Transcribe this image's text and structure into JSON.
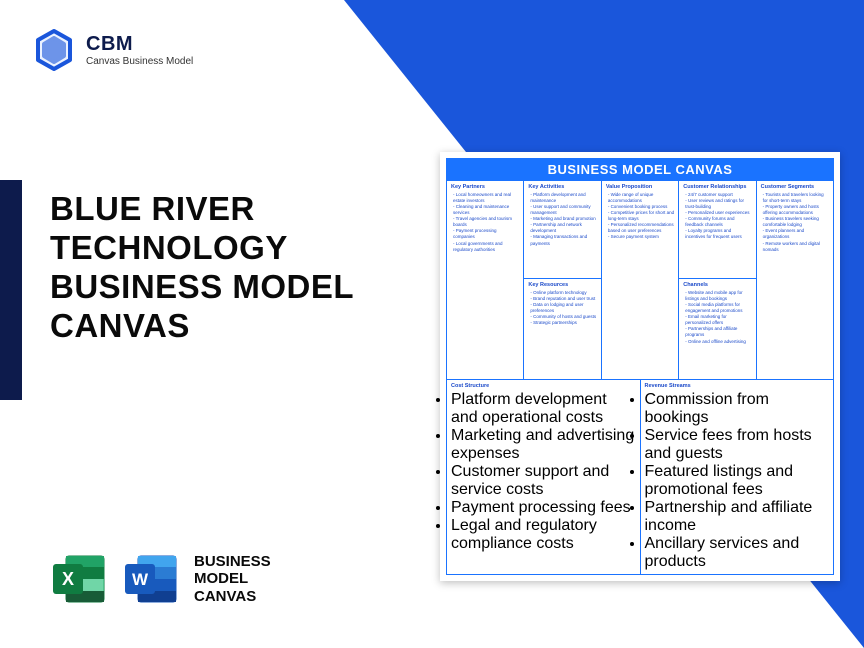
{
  "colors": {
    "primary_blue": "#1a56db",
    "dark_navy": "#0d1b4c",
    "canvas_blue": "#1a73ff",
    "text_blue": "#1a49c9",
    "excel_green": "#107c41",
    "word_blue": "#185abd"
  },
  "logo": {
    "brand": "CBM",
    "sub": "Canvas Business Model"
  },
  "headline": "BLUE RIVER TECHNOLOGY BUSINESS MODEL CANVAS",
  "footer_label": "BUSINESS\nMODEL\nCANVAS",
  "canvas": {
    "title": "BUSINESS MODEL CANVAS",
    "key_partners": {
      "title": "Key Partners",
      "items": [
        "Local homeowners and real estate investors",
        "Cleaning and maintenance services",
        "Travel agencies and tourism boards",
        "Payment processing companies",
        "Local governments and regulatory authorities"
      ]
    },
    "key_activities": {
      "title": "Key Activities",
      "items": [
        "Platform development and maintenance",
        "User support and community management",
        "Marketing and brand promotion",
        "Partnership and network development",
        "Managing transactions and payments"
      ]
    },
    "key_resources": {
      "title": "Key Resources",
      "items": [
        "Online platform technology",
        "Brand reputation and user trust",
        "Data on lodging and user preferences",
        "Community of hosts and guests",
        "Strategic partnerships"
      ]
    },
    "value_proposition": {
      "title": "Value Proposition",
      "items": [
        "Wide range of unique accommodations",
        "Convenient booking process",
        "Competitive prices for short and long-term stays",
        "Personalized recommendations based on user preferences",
        "Secure payment system"
      ]
    },
    "customer_relationships": {
      "title": "Customer Relationships",
      "items": [
        "24/7 customer support",
        "User reviews and ratings for trust-building",
        "Personalized user experiences",
        "Community forums and feedback channels",
        "Loyalty programs and incentives for frequent users"
      ]
    },
    "channels": {
      "title": "Channels",
      "items": [
        "Website and mobile app for listings and bookings",
        "Social media platforms for engagement and promotions",
        "Email marketing for personalized offers",
        "Partnerships and affiliate programs",
        "Online and offline advertising"
      ]
    },
    "customer_segments": {
      "title": "Customer Segments",
      "items": [
        "Tourists and travelers looking for short-term stays",
        "Property owners and hosts offering accommodations",
        "Business travelers seeking comfortable lodging",
        "Event planners and organizations",
        "Remote workers and digital nomads"
      ]
    },
    "cost_structure": {
      "title": "Cost Structure",
      "items": [
        "Platform development and operational costs",
        "Marketing and advertising expenses",
        "Customer support and service costs",
        "Payment processing fees",
        "Legal and regulatory compliance costs"
      ]
    },
    "revenue_streams": {
      "title": "Revenue Streams",
      "items": [
        "Commission from bookings",
        "Service fees from hosts and guests",
        "Featured listings and promotional fees",
        "Partnership and affiliate income",
        "Ancillary services and products"
      ]
    }
  }
}
